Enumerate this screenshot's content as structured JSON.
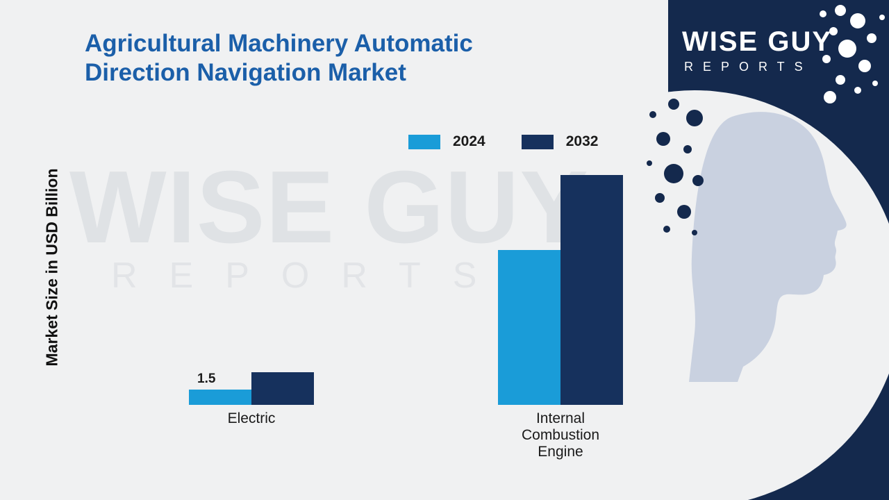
{
  "title": "Agricultural Machinery Automatic Direction Navigation Market",
  "watermark": {
    "line1": "WISE GUY",
    "line2": "REPORTS"
  },
  "brand_logo": {
    "line1": "WISE GUY",
    "line2": "REPORTS"
  },
  "y_axis_label": "Market Size in USD Billion",
  "chart_data": {
    "type": "bar",
    "title": "Agricultural Machinery Automatic Direction Navigation Market",
    "ylabel": "Market Size in USD Billion",
    "categories": [
      "Electric",
      "Internal Combustion Engine"
    ],
    "series": [
      {
        "name": "2024",
        "color": "#1a9cd8",
        "values": [
          1.5,
          15.1
        ]
      },
      {
        "name": "2032",
        "color": "#16315d",
        "values": [
          3.2,
          22.4
        ]
      }
    ],
    "data_labels": [
      {
        "series": "2024",
        "category": "Electric",
        "text": "1.5"
      }
    ],
    "ylim": [
      0,
      22.5
    ],
    "grid": false,
    "legend_position": "top-center"
  },
  "colors": {
    "title_blue": "#1b5fa9",
    "panel_navy": "#14294d",
    "bar_2024": "#1a9cd8",
    "bar_2032": "#16315d",
    "background": "#f0f1f2",
    "watermark_gray": "#e0e2e5"
  }
}
